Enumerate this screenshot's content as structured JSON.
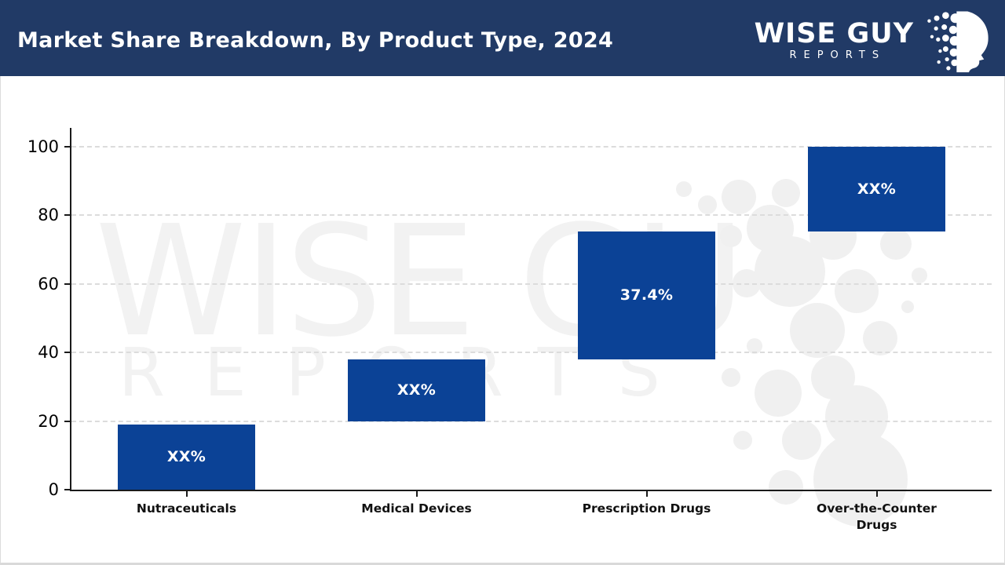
{
  "header": {
    "title": "Market Share Breakdown, By Product Type, 2024",
    "logo": {
      "line1": "WISE GUY",
      "line2": "REPORTS"
    }
  },
  "watermark": {
    "line1": "WISE GU",
    "line2": "REPORTS"
  },
  "colors": {
    "header_bg": "#213a66",
    "bar": "#0b4296",
    "axis": "#1a1a1a",
    "grid": "#dcdcdc",
    "watermark": "#f2f2f2"
  },
  "chart_data": {
    "type": "bar",
    "subtype": "waterfall",
    "title": "Market Share Breakdown, By Product Type, 2024",
    "categories": [
      "Nutraceuticals",
      "Medical Devices",
      "Prescription Drugs",
      "Over-the-Counter Drugs"
    ],
    "bars": [
      {
        "category": "Nutraceuticals",
        "start": 0,
        "end": 19,
        "label": "XX%"
      },
      {
        "category": "Medical Devices",
        "start": 20,
        "end": 38,
        "label": "XX%"
      },
      {
        "category": "Prescription Drugs",
        "start": 38,
        "end": 75.4,
        "label": "37.4%"
      },
      {
        "category": "Over-the-Counter Drugs",
        "start": 75.4,
        "end": 100,
        "label": "XX%"
      }
    ],
    "yticks": [
      0,
      20,
      40,
      60,
      80,
      100
    ],
    "ylim": [
      0,
      105.5
    ],
    "xlabel": "",
    "ylabel": "",
    "grid": "horizontal-dashed",
    "legend": "none",
    "bar_color": "#0b4296"
  }
}
